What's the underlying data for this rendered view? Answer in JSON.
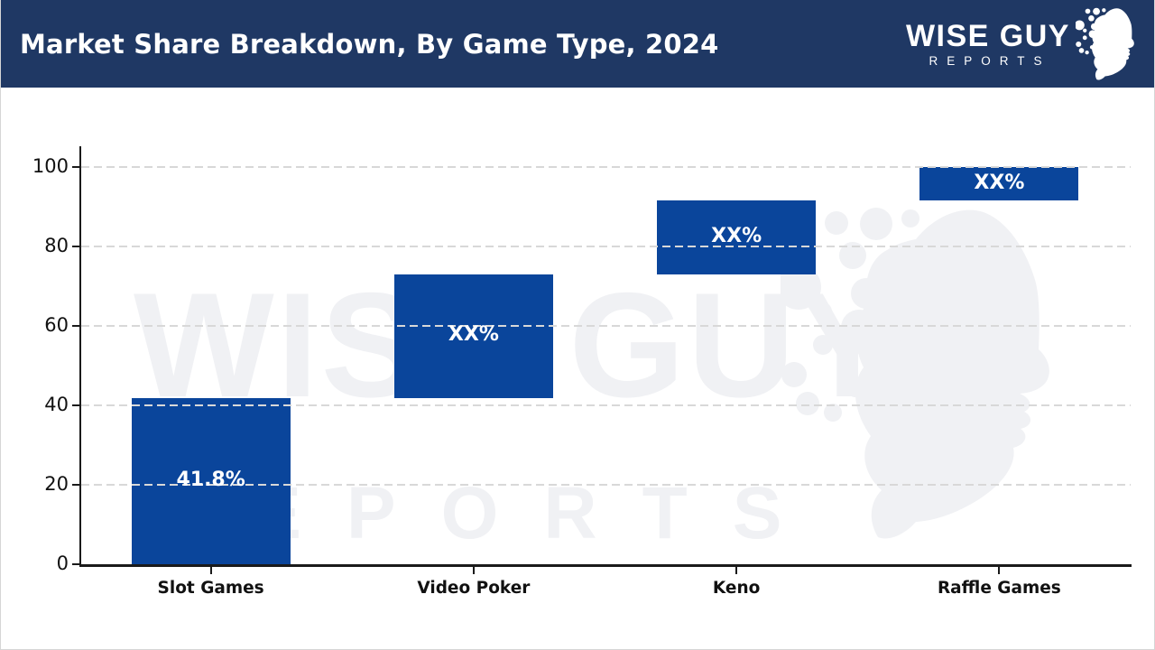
{
  "header": {
    "title": "Market Share Breakdown, By Game Type, 2024",
    "logo": {
      "line1": "WISE GUY",
      "line2": "REPORTS"
    }
  },
  "watermark": {
    "line1": "WISE GUY",
    "line2": "REPORTS"
  },
  "colors": {
    "header_bg": "#1F3864",
    "bar": "#0A459B",
    "grid": "#D8D8D8",
    "axis": "#1A1A1A",
    "bar_label": "#FFFFFF",
    "watermark": "#F0F1F4"
  },
  "chart_data": {
    "type": "bar",
    "subtype": "waterfall",
    "title": "Market Share Breakdown, By Game Type, 2024",
    "xlabel": "",
    "ylabel": "",
    "categories": [
      "Slot Games",
      "Video Poker",
      "Keno",
      "Raffle Games"
    ],
    "segments": [
      {
        "category": "Slot Games",
        "start": 0,
        "end": 41.8,
        "label": "41.8%"
      },
      {
        "category": "Video Poker",
        "start": 41.8,
        "end": 73.0,
        "label": "XX%"
      },
      {
        "category": "Keno",
        "start": 73.0,
        "end": 91.5,
        "label": "XX%"
      },
      {
        "category": "Raffle Games",
        "start": 91.5,
        "end": 100,
        "label": "XX%"
      }
    ],
    "y_ticks": [
      0,
      20,
      40,
      60,
      80,
      100
    ],
    "ylim": [
      0,
      105
    ],
    "grid": "horizontal dashed",
    "legend": "none"
  }
}
